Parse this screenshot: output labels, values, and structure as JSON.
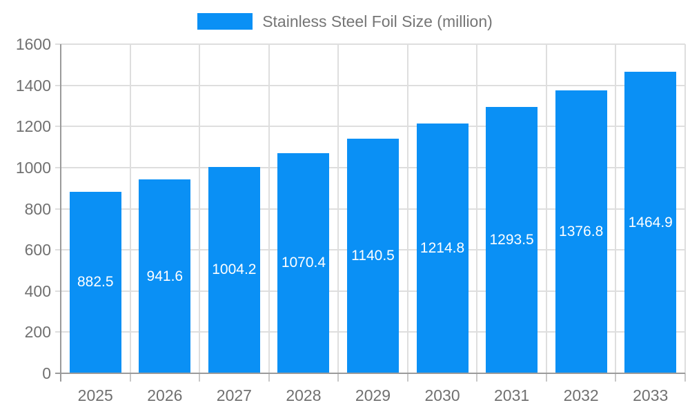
{
  "chart_data": {
    "type": "bar",
    "title": "Stainless Steel Foil Size (million)",
    "categories": [
      "2025",
      "2026",
      "2027",
      "2028",
      "2029",
      "2030",
      "2031",
      "2032",
      "2033"
    ],
    "series": [
      {
        "name": "Stainless Steel Foil Size (million)",
        "values": [
          882.5,
          941.6,
          1004.2,
          1070.4,
          1140.5,
          1214.8,
          1293.5,
          1376.8,
          1464.9
        ]
      }
    ],
    "value_labels": [
      "882.5",
      "941.6",
      "1004.2",
      "1070.4",
      "1140.5",
      "1214.8",
      "1293.5",
      "1376.8",
      "1464.9"
    ],
    "xlabel": "",
    "ylabel": "",
    "ylim": [
      0,
      1600
    ],
    "yticks": [
      0,
      200,
      400,
      600,
      800,
      1000,
      1200,
      1400,
      1600
    ],
    "grid": true,
    "legend_position": "top",
    "colors": {
      "bar": "#0A90F5",
      "axis_line": "#9A9A9A",
      "gridline": "#DEDEDE",
      "boundary_tick": "#C8C8C8",
      "axis_text": "#707070",
      "legend_text": "#757575",
      "value_text": "#FFFFFF",
      "background": "#FFFFFF"
    }
  }
}
